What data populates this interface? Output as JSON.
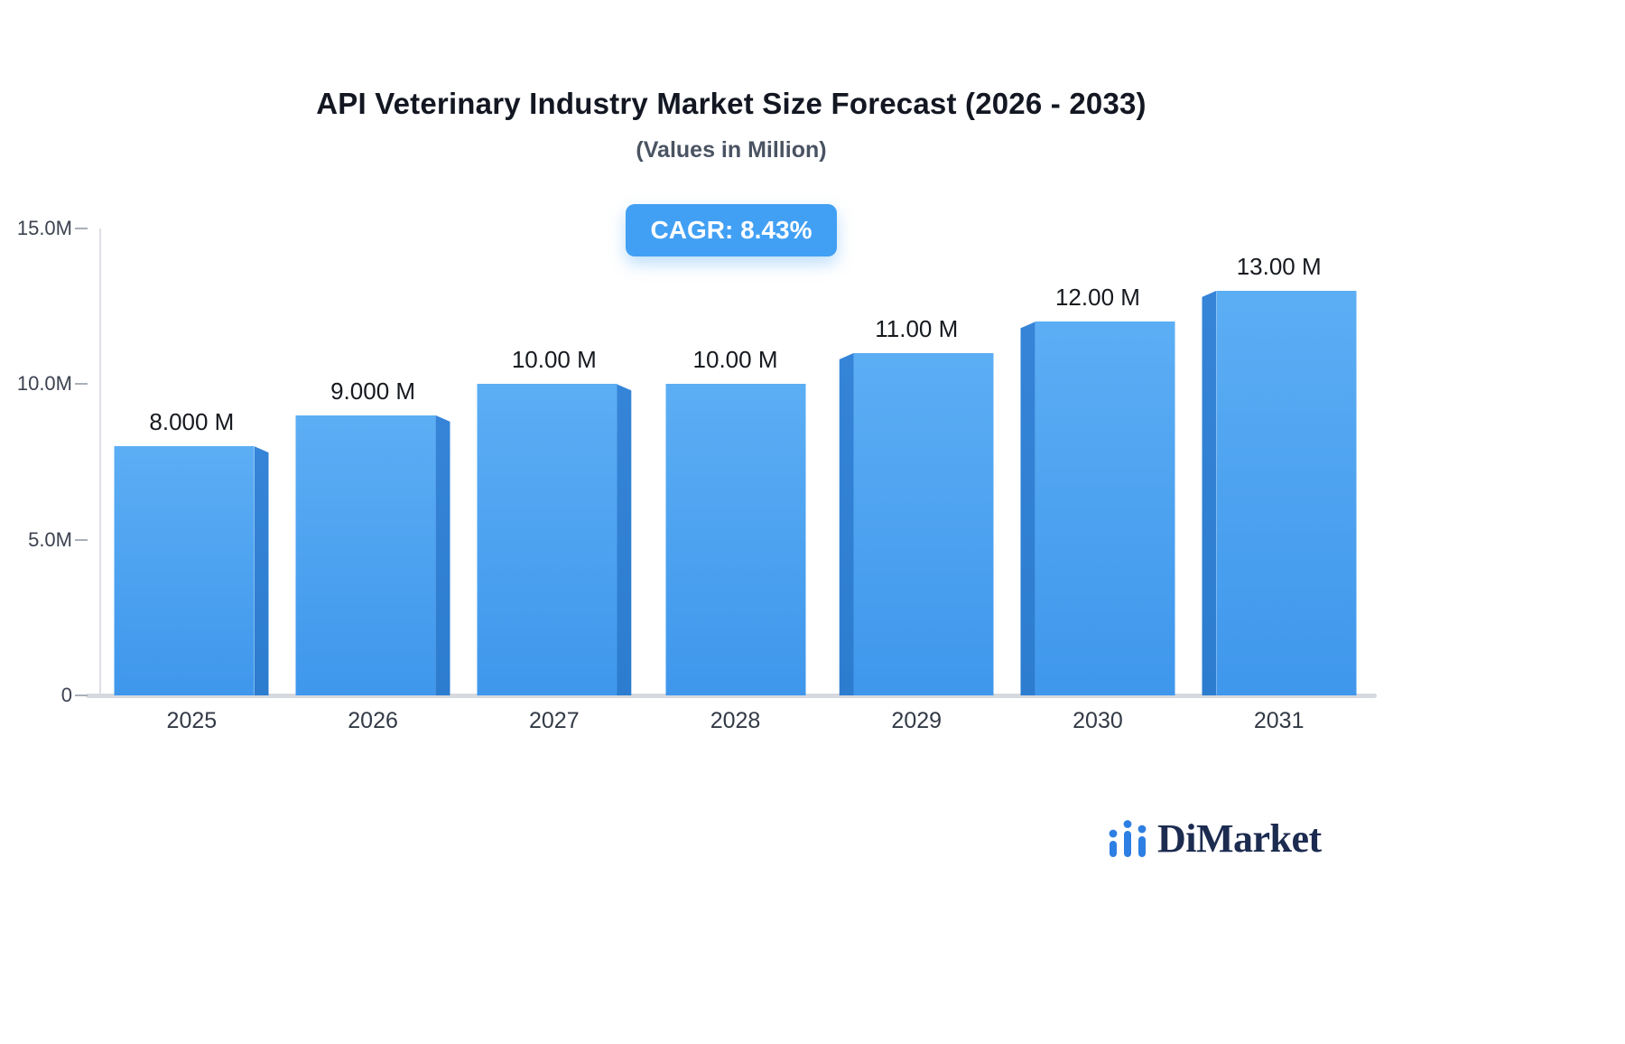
{
  "header": {
    "title": "API Veterinary Industry Market Size Forecast (2026 - 2033)",
    "subtitle": "(Values in Million)",
    "cagr_badge": "CAGR: 8.43%"
  },
  "chart_data": {
    "type": "bar",
    "categories": [
      "2025",
      "2026",
      "2027",
      "2028",
      "2029",
      "2030",
      "2031"
    ],
    "values": [
      8,
      9,
      10,
      10,
      11,
      12,
      13
    ],
    "bar_labels": [
      "8.000 M",
      "9.000 M",
      "10.00 M",
      "10.00 M",
      "11.00 M",
      "12.00 M",
      "13.00 M"
    ],
    "title": "API Veterinary Industry Market Size Forecast (2026 - 2033)",
    "subtitle": "(Values in Million)",
    "xlabel": "",
    "ylabel": "",
    "unit": "Million",
    "ylim": [
      0,
      15
    ],
    "y_ticks": [
      {
        "value": 15,
        "label": "15.0M"
      },
      {
        "value": 10,
        "label": "10.0M"
      },
      {
        "value": 5,
        "label": "5.0M"
      },
      {
        "value": 0,
        "label": "0"
      }
    ],
    "grid": "off",
    "legend": "none",
    "annotations": [
      "CAGR: 8.43%"
    ]
  },
  "footer": {
    "brand": "DiMarket"
  },
  "colors": {
    "accent_blue": "#42a0f4",
    "bar_fill_top": "#5caef4",
    "bar_fill_bottom": "#3f97ec",
    "bar_side": "#2c7ccf",
    "axis_line": "#d6d9de",
    "title_text": "#131722",
    "subtitle_text": "#4a5362",
    "brand_navy": "#1c2b50",
    "logo_icon_blue": "#2e7fe3"
  },
  "icons": {
    "brand_icon": "bar-chart-dots-icon"
  }
}
